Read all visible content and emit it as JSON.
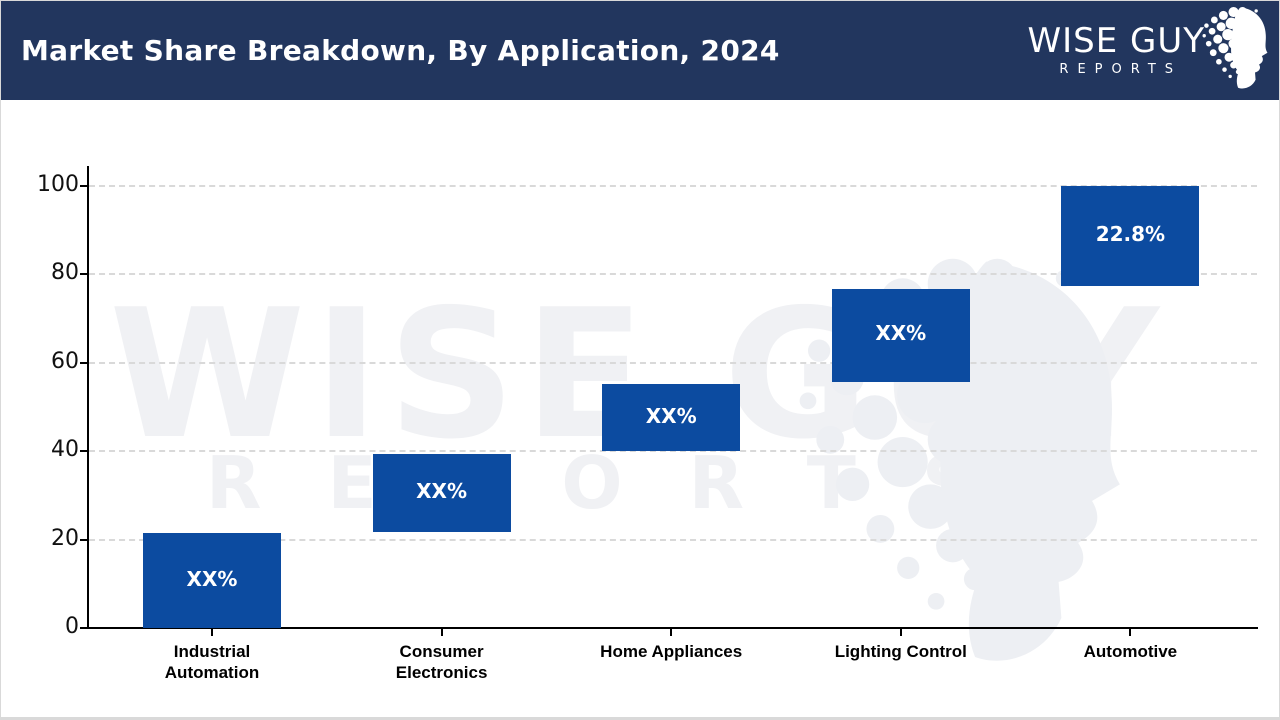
{
  "header": {
    "title": "Market Share Breakdown, By Application, 2024",
    "bg_color": "#22365E",
    "logo": {
      "line1": "WISE GUY",
      "line2": "REPORTS",
      "icon": "dot-matrix-face-profile"
    }
  },
  "watermark": {
    "line1": "WISE GUY",
    "line2": "REPORTS",
    "icon": "dot-matrix-face-profile",
    "color": "#F0F1F4"
  },
  "chart_data": {
    "type": "bar",
    "subtype": "waterfall",
    "title": "",
    "xlabel": "",
    "ylabel": "",
    "categories": [
      "Industrial\nAutomation",
      "Consumer\nElectronics",
      "Home Appliances",
      "Lighting Control",
      "Automotive"
    ],
    "segments": [
      {
        "category": "Industrial Automation",
        "start": 0,
        "end": 21.4,
        "label": "XX%"
      },
      {
        "category": "Consumer Electronics",
        "start": 21.8,
        "end": 39.3,
        "label": "XX%"
      },
      {
        "category": "Home Appliances",
        "start": 40.0,
        "end": 55.1,
        "label": "XX%"
      },
      {
        "category": "Lighting Control",
        "start": 55.7,
        "end": 76.7,
        "label": "XX%"
      },
      {
        "category": "Automotive",
        "start": 77.2,
        "end": 100.0,
        "label": "22.8%"
      }
    ],
    "yticks": [
      0,
      20,
      40,
      60,
      80,
      100
    ],
    "ylim": [
      0,
      104.5
    ],
    "bar_color": "#0C4BA0",
    "bar_label_color": "#FFFFFF",
    "grid": {
      "horizontal": true,
      "style": "dashed",
      "color": "#D9D9D9"
    },
    "legend": "none"
  }
}
